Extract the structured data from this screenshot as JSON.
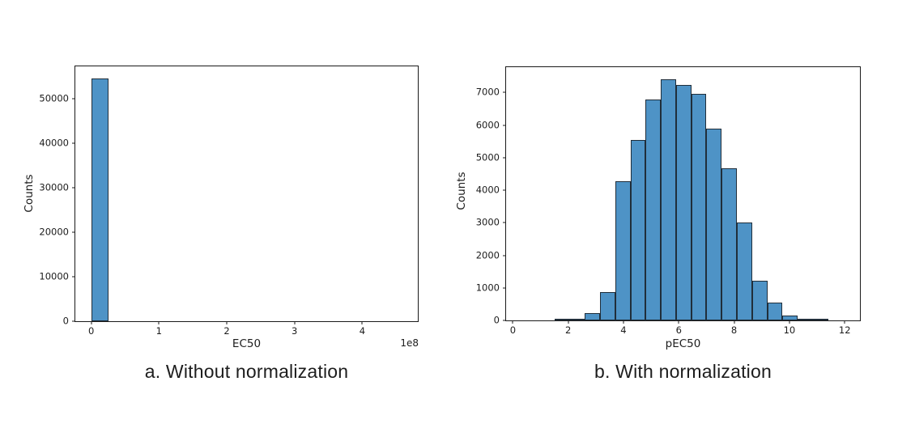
{
  "page": {
    "background": "#ffffff",
    "text_color": "#1c1c1c"
  },
  "chart_data": [
    {
      "type": "bar",
      "variant": "histogram",
      "title": "a. Without normalization",
      "xlabel": "EC50",
      "ylabel": "Counts",
      "x_offset_label": "1e8",
      "grid": false,
      "legend_position": "none",
      "bin_start": 0,
      "bin_width": 0.25,
      "values": [
        54600
      ],
      "xlim": [
        -0.235,
        4.82
      ],
      "ylim": [
        0,
        57300
      ],
      "xticks": [
        0,
        1,
        2,
        3,
        4
      ],
      "xtick_labels": [
        "0",
        "1",
        "2",
        "3",
        "4"
      ],
      "yticks": [
        0,
        10000,
        20000,
        30000,
        40000,
        50000
      ],
      "ytick_labels": [
        "0",
        "10000",
        "20000",
        "30000",
        "40000",
        "50000"
      ],
      "colors": {
        "bar_fill": "#4e93c6",
        "bar_edge": "#202e3a",
        "axis": "#1a1a1a"
      }
    },
    {
      "type": "bar",
      "variant": "histogram",
      "title": "b. With normalization",
      "xlabel": "pEC50",
      "ylabel": "Counts",
      "x_offset_label": "",
      "grid": false,
      "legend_position": "none",
      "bin_start": 1.5,
      "bin_width": 0.55,
      "values": [
        15,
        60,
        230,
        870,
        4280,
        5530,
        6790,
        7400,
        7230,
        6950,
        5900,
        4670,
        3000,
        1220,
        550,
        150,
        45,
        15
      ],
      "xlim": [
        -0.245,
        12.55
      ],
      "ylim": [
        0,
        7778
      ],
      "xticks": [
        0,
        2,
        4,
        6,
        8,
        10,
        12
      ],
      "xtick_labels": [
        "0",
        "2",
        "4",
        "6",
        "8",
        "10",
        "12"
      ],
      "yticks": [
        0,
        1000,
        2000,
        3000,
        4000,
        5000,
        6000,
        7000
      ],
      "ytick_labels": [
        "0",
        "1000",
        "2000",
        "3000",
        "4000",
        "5000",
        "6000",
        "7000"
      ],
      "colors": {
        "bar_fill": "#4e93c6",
        "bar_edge": "#202e3a",
        "axis": "#1a1a1a"
      }
    }
  ]
}
